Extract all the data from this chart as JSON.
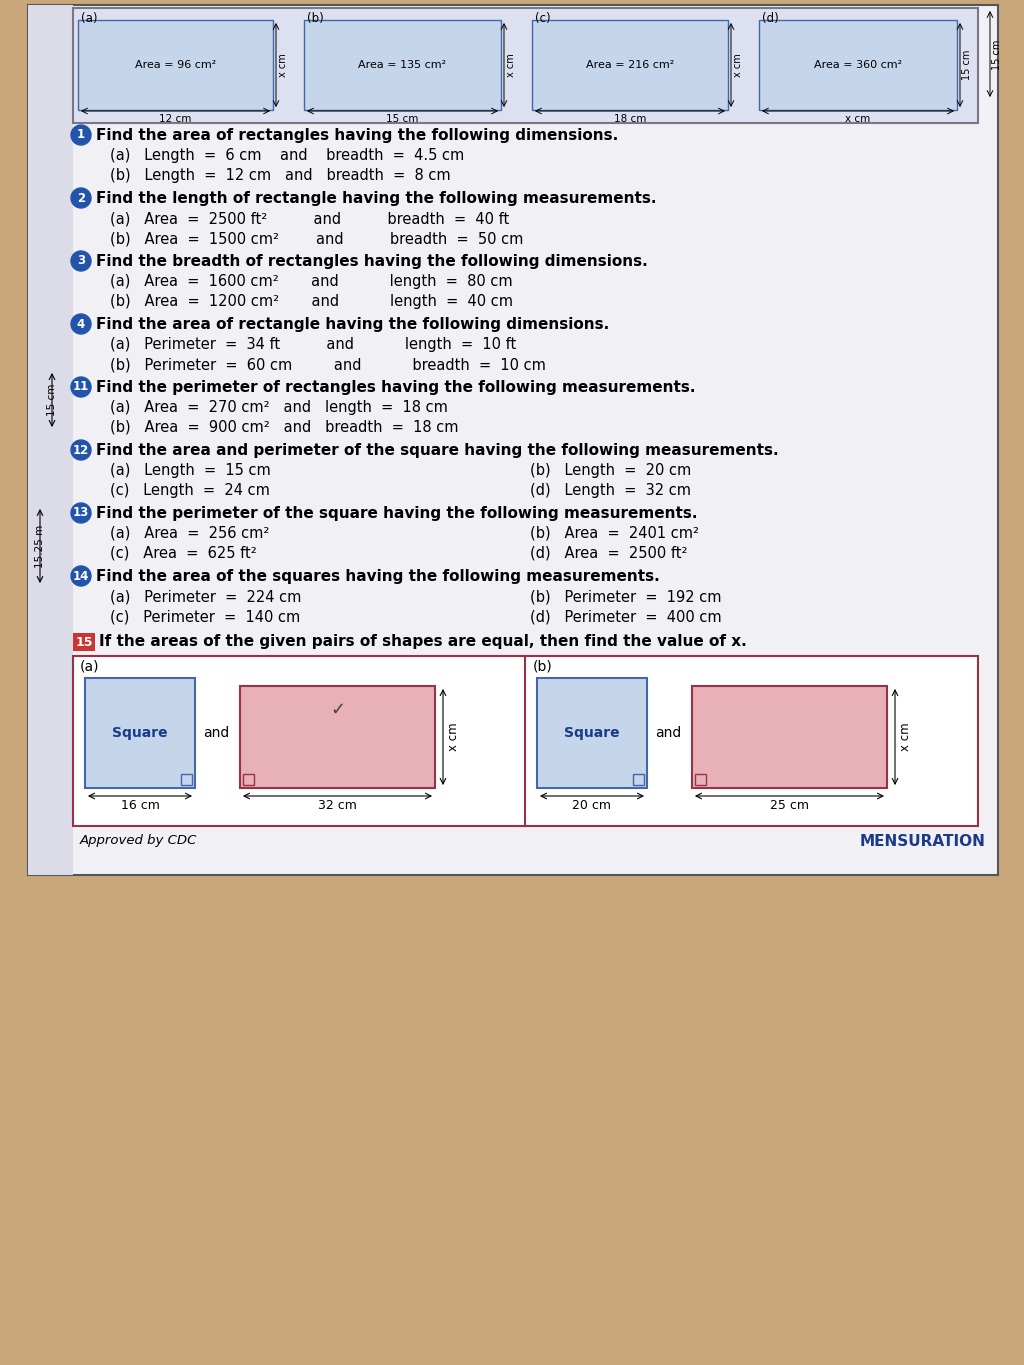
{
  "bg_tan": "#c8a87a",
  "page_bg": "#f0f0f5",
  "left_strip_color": "#d8d8e8",
  "blue_rect_fill": "#c5d5ea",
  "blue_rect_edge": "#4466aa",
  "pink_rect_fill": "#e8b0b8",
  "pink_rect_edge": "#993344",
  "num_circle_color": "#2255aa",
  "num_rect15_color": "#cc3333",
  "text_black": "#000000",
  "text_blue_bold": "#1a3a8a",
  "top_area_labels": [
    "Area = 96 cm²",
    "Area = 135 cm²",
    "Area = 216 cm²",
    "Area = 360 cm²"
  ],
  "top_width_labels": [
    "12 cm",
    "15 cm",
    "18 cm",
    "x cm"
  ],
  "top_height_labels": [
    "x cm",
    "x cm",
    "x cm",
    "15 cm"
  ],
  "top_part_labels": [
    "(a)",
    "(b)",
    "(c)",
    "(d)"
  ],
  "p1_header": "Find the area of rectangles having the following dimensions.",
  "p1_num": "1",
  "p1_parts": [
    "(a)   Length  =  6 cm    and    breadth  =  4.5 cm",
    "(b)   Length  =  12 cm   and   breadth  =  8 cm"
  ],
  "p2_header": "Find the length of rectangle having the following measurements.",
  "p2_num": "2",
  "p2_parts": [
    "(a)   Area  =  2500 ft²          and          breadth  =  40 ft",
    "(b)   Area  =  1500 cm²        and          breadth  =  50 cm"
  ],
  "p3_header": "Find the breadth of rectangles having the following dimensions.",
  "p3_num": "3",
  "p3_parts": [
    "(a)   Area  =  1600 cm²       and           length  =  80 cm",
    "(b)   Area  =  1200 cm²       and           length  =  40 cm"
  ],
  "p4_header": "Find the area of rectangle having the following dimensions.",
  "p4_num": "4",
  "p4_parts": [
    "(a)   Perimeter  =  34 ft          and           length  =  10 ft",
    "(b)   Perimeter  =  60 cm         and           breadth  =  10 cm"
  ],
  "p11_header": "Find the perimeter of rectangles having the following measurements.",
  "p11_num": "11",
  "p11_parts": [
    "(a)   Area  =  270 cm²   and   length  =  18 cm",
    "(b)   Area  =  900 cm²   and   breadth  =  18 cm"
  ],
  "p12_header": "Find the area and perimeter of the square having the following measurements.",
  "p12_num": "12",
  "p12_left": [
    "(a)   Length  =  15 cm",
    "(c)   Length  =  24 cm"
  ],
  "p12_right": [
    "(b)   Length  =  20 cm",
    "(d)   Length  =  32 cm"
  ],
  "p13_header": "Find the perimeter of the square having the following measurements.",
  "p13_num": "13",
  "p13_left": [
    "(a)   Area  =  256 cm²",
    "(c)   Area  =  625 ft²"
  ],
  "p13_right": [
    "(b)   Area  =  2401 cm²",
    "(d)   Area  =  2500 ft²"
  ],
  "p14_header": "Find the area of the squares having the following measurements.",
  "p14_num": "14",
  "p14_left": [
    "(a)   Perimeter  =  224 cm",
    "(c)   Perimeter  =  140 cm"
  ],
  "p14_right": [
    "(b)   Perimeter  =  192 cm",
    "(d)   Perimeter  =  400 cm"
  ],
  "p15_header": "If the areas of the given pairs of shapes are equal, then find the value of x.",
  "p15_num": "15",
  "sq_label": "Square",
  "and_label": "and",
  "dim_a_sq": "16 cm",
  "dim_a_rect": "32 cm",
  "dim_b_sq": "20 cm",
  "dim_b_rect": "25 cm",
  "xcm": "x cm",
  "approved": "Approved by CDC",
  "mensuration": "MENSURATION",
  "margin_left_label": "15 cm",
  "margin_left2_label": "15.25 m"
}
